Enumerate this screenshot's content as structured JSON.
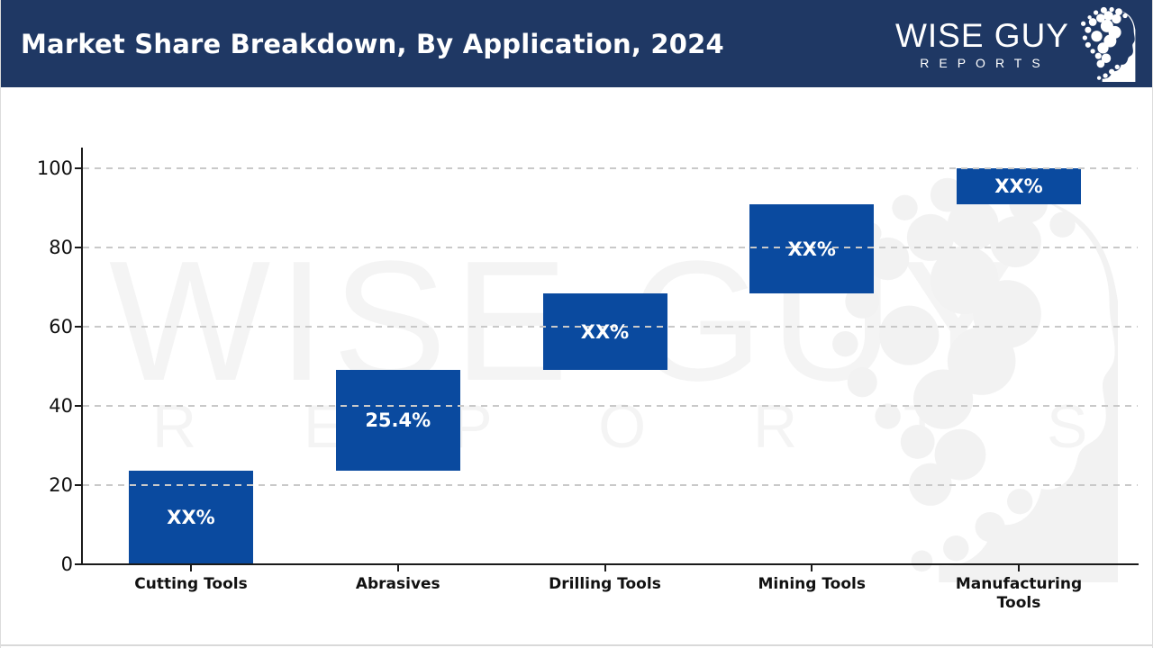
{
  "header": {
    "title": "Market Share Breakdown, By Application, 2024",
    "logo": {
      "line1": "WISE GUY",
      "line2": "REPORTS"
    }
  },
  "watermark": {
    "line1": "WISE GUY",
    "line2": "R E P O R T S"
  },
  "colors": {
    "header_bg": "#1F3864",
    "bar_fill": "#0A4A9F",
    "grid_line": "#C9C9C9",
    "axis_line": "#1A1A1A",
    "watermark_gray": "#F4F4F4",
    "label_white": "#FFFFFF",
    "text_black": "#111111"
  },
  "chart_data": {
    "type": "bar",
    "subtype": "waterfall-floating-bars",
    "title": "Market Share Breakdown, By Application, 2024",
    "categories": [
      "Cutting Tools",
      "Abrasives",
      "Drilling Tools",
      "Mining Tools",
      "Manufacturing Tools"
    ],
    "segments": [
      {
        "category": "Cutting Tools",
        "label": "XX%",
        "start": 0,
        "end": 23.7
      },
      {
        "category": "Abrasives",
        "label": "25.4%",
        "start": 23.7,
        "end": 49.1
      },
      {
        "category": "Drilling Tools",
        "label": "XX%",
        "start": 49.1,
        "end": 68.3
      },
      {
        "category": "Mining Tools",
        "label": "XX%",
        "start": 68.3,
        "end": 91.0
      },
      {
        "category": "Manufacturing Tools",
        "label": "XX%",
        "start": 91.0,
        "end": 100.0
      }
    ],
    "xlabel": "",
    "ylabel": "",
    "ylim": [
      0,
      100
    ],
    "yticks": [
      0,
      20,
      40,
      60,
      80,
      100
    ],
    "grid": "horizontal-dashed-over-bars",
    "legend": "none"
  }
}
